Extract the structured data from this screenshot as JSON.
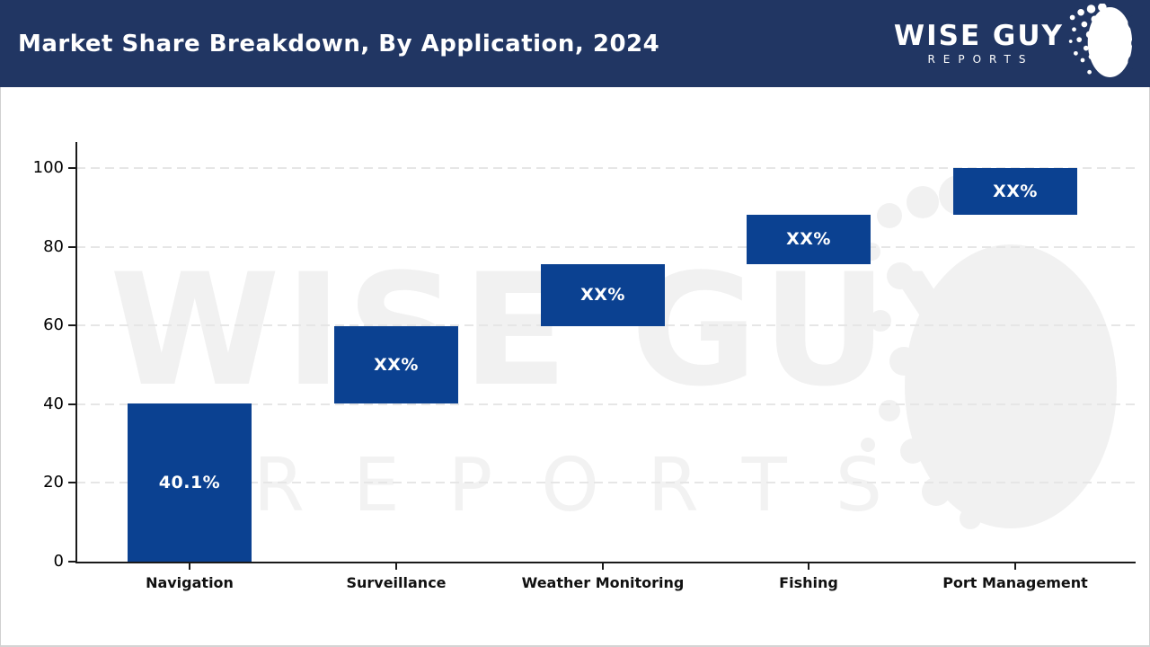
{
  "header": {
    "title": "Market Share Breakdown, By Application, 2024",
    "logo": {
      "name": "WISE GUY",
      "sub": "REPORTS"
    }
  },
  "watermark": {
    "line1": "WISE GUY",
    "line2": "REPORTS"
  },
  "chart_data": {
    "type": "bar",
    "subtype": "waterfall",
    "title": "Market Share Breakdown, By Application, 2024",
    "xlabel": "",
    "ylabel": "",
    "ylim": [
      0,
      107
    ],
    "yticks": [
      0,
      20,
      40,
      60,
      80,
      100
    ],
    "grid": "horizontal-dashed",
    "legend": "none",
    "bar_color": "#0b4191",
    "value_label_color": "#ffffff",
    "categories": [
      "Navigation",
      "Surveillance",
      "Weather Monitoring",
      "Fishing",
      "Port Management"
    ],
    "segments": [
      {
        "category": "Navigation",
        "start": 0,
        "end": 40.1,
        "label": "40.1%"
      },
      {
        "category": "Surveillance",
        "start": 40.1,
        "end": 59.9,
        "label": "XX%"
      },
      {
        "category": "Weather Monitoring",
        "start": 59.9,
        "end": 75.6,
        "label": "XX%"
      },
      {
        "category": "Fishing",
        "start": 75.6,
        "end": 88.2,
        "label": "XX%"
      },
      {
        "category": "Port Management",
        "start": 88.2,
        "end": 100,
        "label": "XX%"
      }
    ]
  }
}
